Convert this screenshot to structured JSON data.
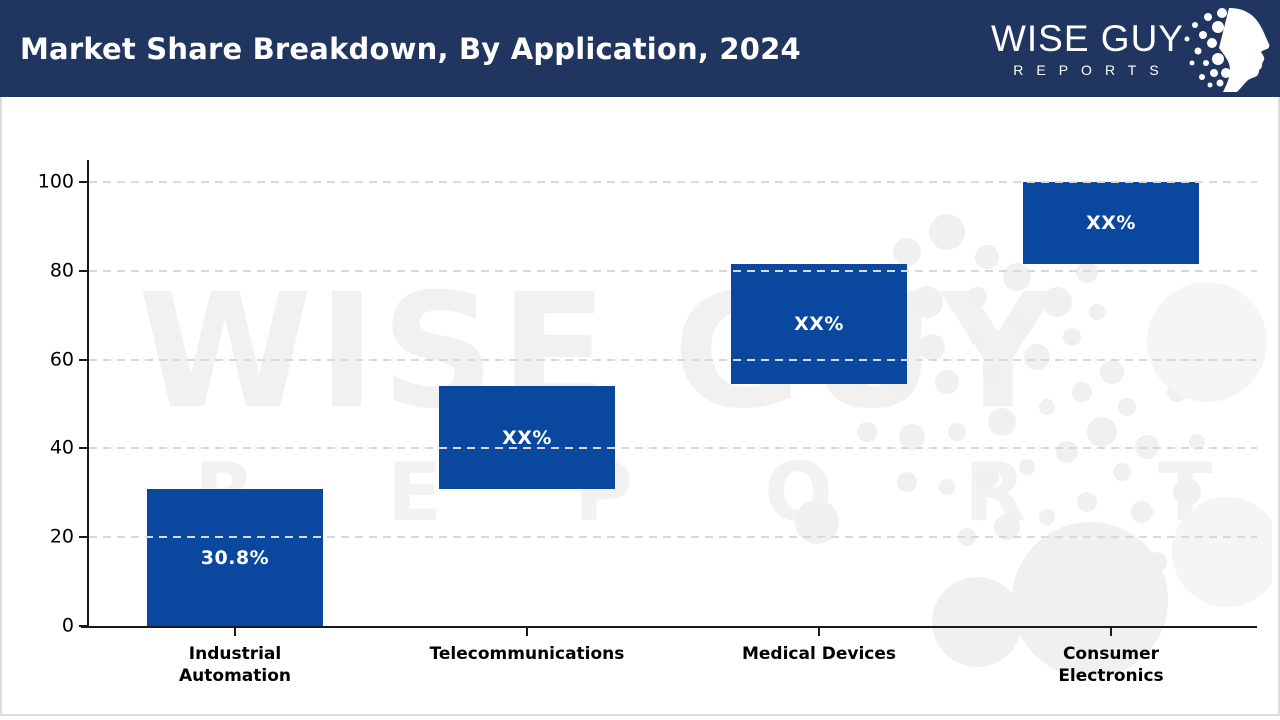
{
  "header": {
    "title": "Market Share Breakdown, By Application, 2024",
    "bg_color": "#203560",
    "logo": {
      "brand": "WISE GUY",
      "subtitle": "REPORTS"
    }
  },
  "watermark": {
    "brand": "WISE GUY",
    "subtitle": "R E P O R T S"
  },
  "chart_data": {
    "type": "bar",
    "variant": "waterfall (floating stacked percentage bars)",
    "title": "Market Share Breakdown, By Application, 2024",
    "xlabel": "",
    "ylabel": "",
    "ylim": [
      0,
      105
    ],
    "yticks": [
      0,
      20,
      40,
      60,
      80,
      100
    ],
    "grid": "horizontal dashed light-gray, drawn over bars",
    "legend": "none",
    "bar_color": "#0a479e",
    "bar_label_color": "#ffffff",
    "axis_color": "#1a1a1a",
    "categories": [
      "Industrial Automation",
      "Telecommunications",
      "Medical Devices",
      "Consumer Electronics"
    ],
    "category_lines": [
      [
        "Industrial",
        "Automation"
      ],
      [
        "Telecommunications"
      ],
      [
        "Medical Devices"
      ],
      [
        "Consumer",
        "Electronics"
      ]
    ],
    "segments": [
      {
        "category": "Industrial Automation",
        "start": 0,
        "end": 30.8,
        "label": "30.8%"
      },
      {
        "category": "Telecommunications",
        "start": 30.8,
        "end": 54,
        "label": "XX%"
      },
      {
        "category": "Medical Devices",
        "start": 54.5,
        "end": 81.5,
        "label": "XX%"
      },
      {
        "category": "Consumer Electronics",
        "start": 81.5,
        "end": 100,
        "label": "XX%"
      }
    ]
  }
}
